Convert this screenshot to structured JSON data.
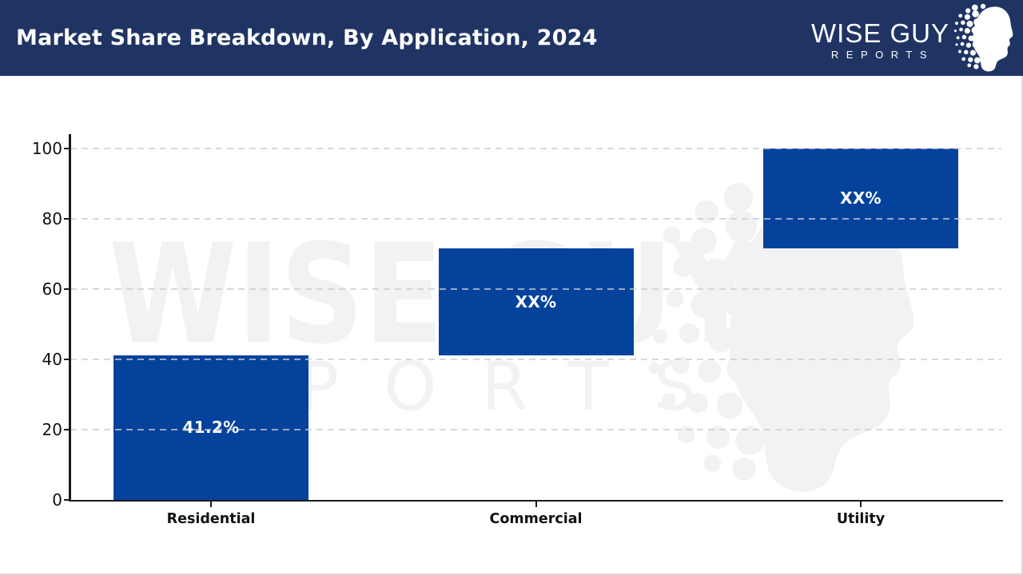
{
  "header": {
    "title": "Market Share Breakdown, By Application, 2024",
    "logo": {
      "name": "WISE GUY",
      "sub": "REPORTS"
    }
  },
  "watermark": {
    "text1": "WISE GUY",
    "text2": "REPORTS"
  },
  "colors": {
    "header_bg": "#1f3463",
    "bar_blue": "#04429c",
    "bar_label_white": "#ffffff",
    "axis_black": "#1a1a1a",
    "watermark_gray": "#f2f2f4"
  },
  "chart_data": {
    "type": "bar",
    "subtype": "floating-segment-waterfall",
    "title": "Market Share Breakdown, By Application, 2024",
    "categories": [
      "Residential",
      "Commercial",
      "Utility"
    ],
    "series": [
      {
        "name": "Market share (%)",
        "segments": [
          {
            "category": "Residential",
            "from": 0,
            "to": 41.2,
            "label": "41.2%"
          },
          {
            "category": "Commercial",
            "from": 41.2,
            "to": 71.6,
            "label": "XX%"
          },
          {
            "category": "Utility",
            "from": 71.6,
            "to": 100,
            "label": "XX%"
          }
        ]
      }
    ],
    "xlabel": "",
    "ylabel": "",
    "ylim": [
      0,
      100
    ],
    "yticks": [
      0,
      20,
      40,
      60,
      80,
      100
    ],
    "grid": {
      "horizontal": true,
      "style": "dashed",
      "drawn_over_bars": true
    },
    "legend": "none",
    "bar_color": "#04429c"
  }
}
